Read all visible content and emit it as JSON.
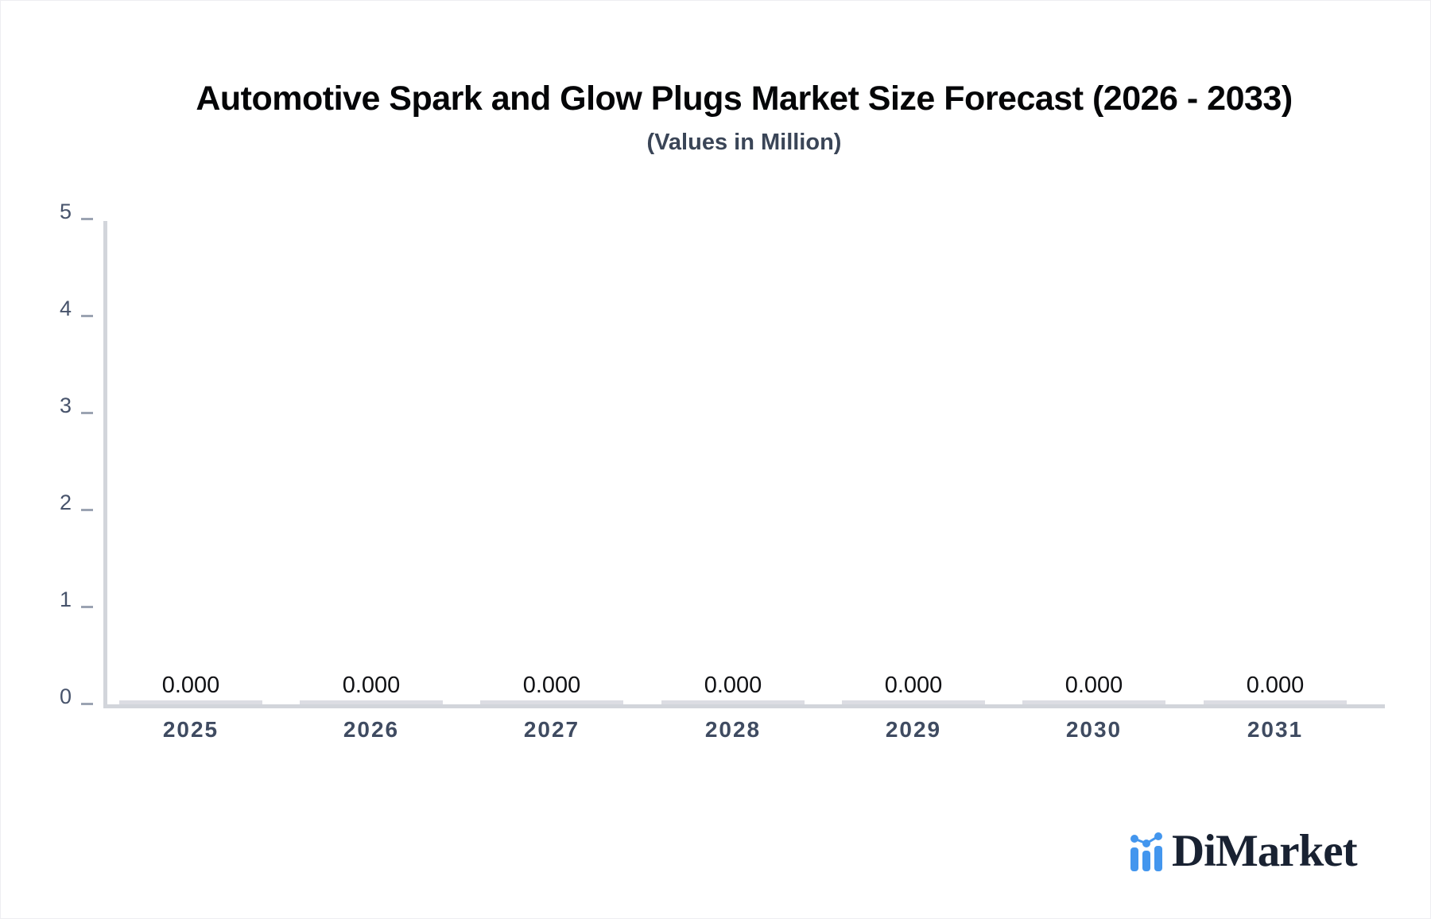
{
  "title": "Automotive Spark and Glow Plugs Market Size Forecast (2026 - 2033)",
  "subtitle": "(Values in Million)",
  "chart_data": {
    "type": "bar",
    "title": "Automotive Spark and Glow Plugs Market Size Forecast (2026 - 2033)",
    "subtitle": "(Values in Million)",
    "categories": [
      "2025",
      "2026",
      "2027",
      "2028",
      "2029",
      "2030",
      "2031"
    ],
    "values": [
      0,
      0,
      0,
      0,
      0,
      0,
      0
    ],
    "value_labels": [
      "0.000",
      "0.000",
      "0.000",
      "0.000",
      "0.000",
      "0.000",
      "0.000"
    ],
    "xlabel": "",
    "ylabel": "",
    "ylim": [
      0,
      5
    ],
    "yticks": [
      "0",
      "1",
      "2",
      "3",
      "4",
      "5"
    ],
    "grid": false,
    "legend": false,
    "bar_color": "#dcdde3",
    "axis_color": "#d2d5db",
    "label_color": "#3f4b61"
  },
  "logo": {
    "text": "DiMarket",
    "icon": "bar-line-chart-icon",
    "icon_color": "#4396ee",
    "text_color": "#192232"
  }
}
